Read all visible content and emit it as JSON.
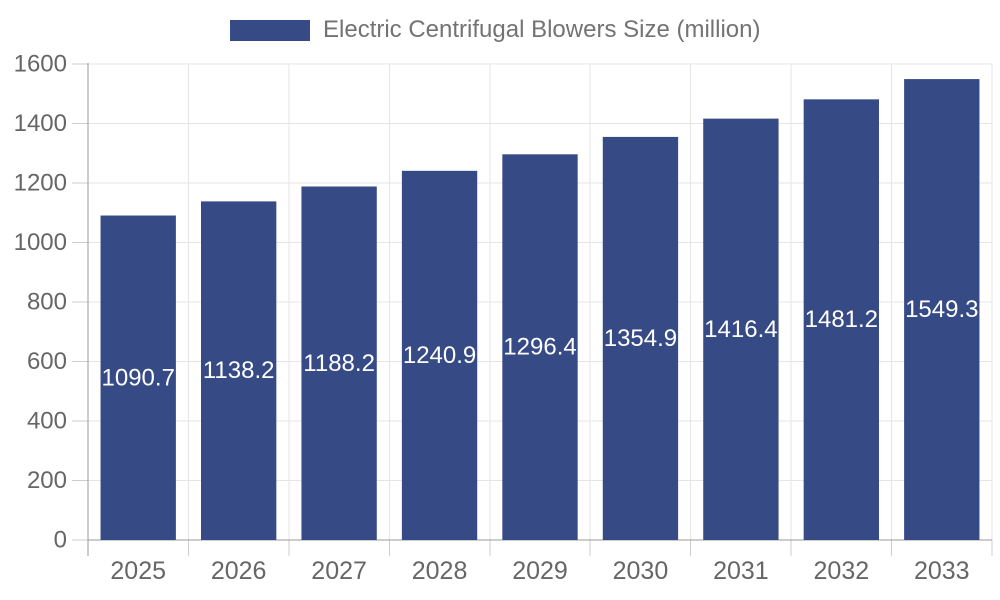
{
  "legend": {
    "label": "Electric Centrifugal Blowers Size (million)"
  },
  "colors": {
    "bar": "#364a85",
    "grid_line": "#e5e5e5",
    "axis_line": "#999999",
    "tick_line": "#cccccc",
    "axis_text": "#666666",
    "legend_text": "#737373",
    "value_text": "#ffffff",
    "background": "#ffffff"
  },
  "chart_data": {
    "type": "bar",
    "title": "Electric Centrifugal Blowers Size (million)",
    "categories": [
      "2025",
      "2026",
      "2027",
      "2028",
      "2029",
      "2030",
      "2031",
      "2032",
      "2033"
    ],
    "values": [
      1090.7,
      1138.2,
      1188.2,
      1240.9,
      1296.4,
      1354.9,
      1416.4,
      1481.2,
      1549.3
    ],
    "xlabel": "",
    "ylabel": "",
    "ylim": [
      0,
      1600
    ],
    "yticks": [
      0,
      200,
      400,
      600,
      800,
      1000,
      1200,
      1400,
      1600
    ],
    "grid": true,
    "grid_vertical": true,
    "legend_position": "top",
    "value_label_position": "inside-center"
  }
}
